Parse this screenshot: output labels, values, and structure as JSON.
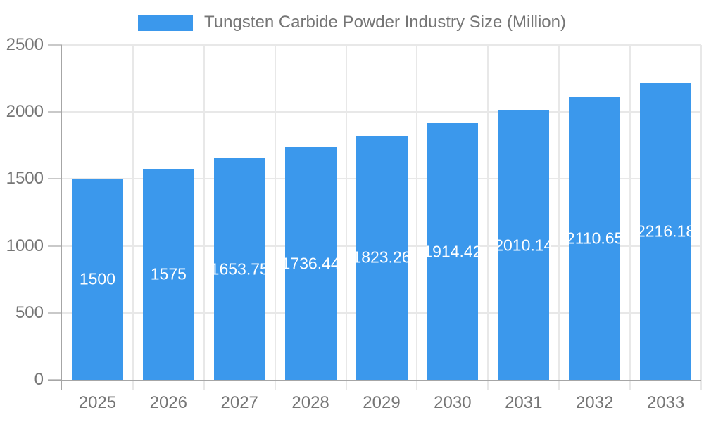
{
  "chart_data": {
    "type": "bar",
    "title": "Tungsten Carbide Powder Industry Size (Million)",
    "legend": {
      "label": "Tungsten Carbide Powder Industry Size (Million)",
      "position": "top-center"
    },
    "categories": [
      "2025",
      "2026",
      "2027",
      "2028",
      "2029",
      "2030",
      "2031",
      "2032",
      "2033"
    ],
    "values": [
      1500,
      1575,
      1653.75,
      1736.44,
      1823.26,
      1914.42,
      2010.14,
      2110.65,
      2216.18
    ],
    "value_labels": [
      "1500",
      "1575",
      "1653.75",
      "1736.44",
      "1823.26",
      "1914.42",
      "2010.14",
      "2110.65",
      "2216.18"
    ],
    "xlabel": "",
    "ylabel": "",
    "ylim": [
      0,
      2500
    ],
    "yticks": [
      0,
      500,
      1000,
      1500,
      2000,
      2500
    ],
    "yticklabels": [
      "0",
      "500",
      "1000",
      "1500",
      "2000",
      "2500"
    ],
    "grid": true,
    "colors": {
      "bar": "#3B98EC",
      "grid": "#E8E8E8",
      "axis": "#A6A6A6",
      "tick": "#C9C9C9",
      "text": "#757575",
      "value_label": "#FFFFFF",
      "background": "#FFFFFF"
    }
  }
}
